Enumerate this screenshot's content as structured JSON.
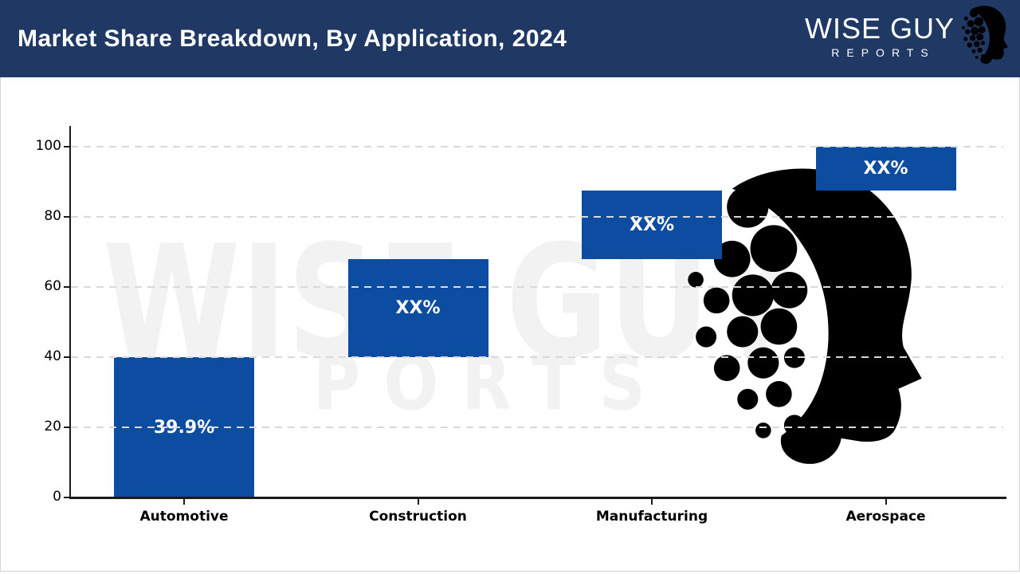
{
  "header": {
    "title": "Market Share Breakdown, By Application, 2024",
    "bg_color": "#1f3864",
    "logo": {
      "line1": "WISE GUY",
      "line2": "REPORTS"
    }
  },
  "watermark": {
    "line1": "WISE GUY",
    "line2": "PORTS"
  },
  "chart_data": {
    "type": "bar",
    "subtype": "waterfall",
    "title": "Market Share Breakdown, By Application, 2024",
    "categories": [
      "Automotive",
      "Construction",
      "Manufacturing",
      "Aerospace"
    ],
    "segments": [
      {
        "category": "Automotive",
        "start": 0,
        "end": 39.9,
        "label": "39.9%"
      },
      {
        "category": "Construction",
        "start": 39.9,
        "end": 67.9,
        "label": "XX%"
      },
      {
        "category": "Manufacturing",
        "start": 67.9,
        "end": 87.4,
        "label": "XX%"
      },
      {
        "category": "Aerospace",
        "start": 87.4,
        "end": 100,
        "label": "XX%"
      }
    ],
    "yticks": [
      0,
      20,
      40,
      60,
      80,
      100
    ],
    "ylim": [
      0,
      105
    ],
    "xlabel": "",
    "ylabel": "",
    "bar_color": "#0d4da1",
    "bar_label_color": "#ffffff",
    "grid": true,
    "grid_style": "dashed",
    "grid_color": "#d9d9d9",
    "axis_color": "#1a1a1a",
    "legend": "none"
  }
}
